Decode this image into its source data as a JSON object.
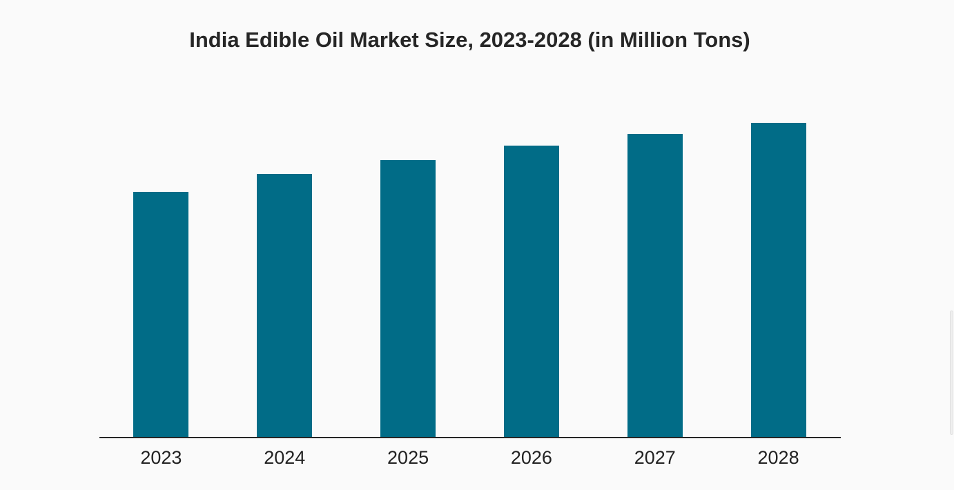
{
  "page": {
    "background_color": "#fafafa",
    "scrollbar_visible": true
  },
  "chart": {
    "title": "India Edible Oil Market Size, 2023-2028 (in Million Tons)",
    "bar_color": "#016c87",
    "axis_color": "#262626",
    "text_color": "#262626"
  },
  "chart_data": {
    "type": "bar",
    "title": "India Edible Oil Market Size, 2023-2028 (in Million Tons)",
    "categories": [
      "2023",
      "2024",
      "2025",
      "2026",
      "2027",
      "2028"
    ],
    "values": [
      78.0,
      83.7,
      88.1,
      92.7,
      96.5,
      100.0
    ],
    "value_note": "No y-axis, gridlines or data labels are shown; values are relative bar heights normalized so 2028 = 100.",
    "xlabel": "",
    "ylabel": "",
    "ylim": [
      0,
      100
    ],
    "grid": false,
    "legend": false,
    "bar_color": "#016c87"
  }
}
